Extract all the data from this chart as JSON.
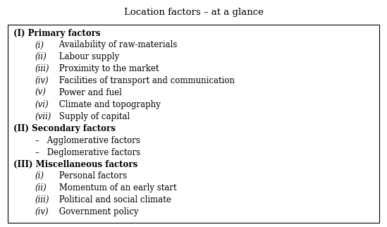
{
  "title": "Location factors – at a glance",
  "title_fontsize": 9.5,
  "title_fontweight": "normal",
  "bg_color": "#ffffff",
  "box_color": "#ffffff",
  "border_color": "#000000",
  "text_color": "#000000",
  "lines": [
    {
      "prefix": "(I)",
      "suffix": " Primary factors",
      "bold": true,
      "level": 0
    },
    {
      "prefix": "(i)",
      "suffix": " Availability of raw-materials",
      "bold": false,
      "level": 1
    },
    {
      "prefix": "(ii)",
      "suffix": " Labour supply",
      "bold": false,
      "level": 1
    },
    {
      "prefix": "(iii)",
      "suffix": " Proximity to the market",
      "bold": false,
      "level": 1
    },
    {
      "prefix": "(iv)",
      "suffix": " Facilities of transport and communication",
      "bold": false,
      "level": 1
    },
    {
      "prefix": "(v)",
      "suffix": " Power and fuel",
      "bold": false,
      "level": 1
    },
    {
      "prefix": "(vi)",
      "suffix": " Climate and topography",
      "bold": false,
      "level": 1
    },
    {
      "prefix": "(vii)",
      "suffix": " Supply of capital",
      "bold": false,
      "level": 1
    },
    {
      "prefix": "(II)",
      "suffix": " Secondary factors",
      "bold": true,
      "level": 0
    },
    {
      "prefix": "–",
      "suffix": " Agglomerative factors",
      "bold": false,
      "level": 2
    },
    {
      "prefix": "–",
      "suffix": " Deglomerative factors",
      "bold": false,
      "level": 2
    },
    {
      "prefix": "(III)",
      "suffix": " Miscellaneous factors",
      "bold": true,
      "level": 0
    },
    {
      "prefix": "(i)",
      "suffix": " Personal factors",
      "bold": false,
      "level": 1
    },
    {
      "prefix": "(ii)",
      "suffix": " Momentum of an early start",
      "bold": false,
      "level": 1
    },
    {
      "prefix": "(iii)",
      "suffix": " Political and social climate",
      "bold": false,
      "level": 1
    },
    {
      "prefix": "(iv)",
      "suffix": " Government policy",
      "bold": false,
      "level": 1
    }
  ],
  "fontsize": 8.5,
  "font_family": "DejaVu Serif",
  "fig_width": 5.49,
  "fig_height": 3.22,
  "dpi": 100
}
